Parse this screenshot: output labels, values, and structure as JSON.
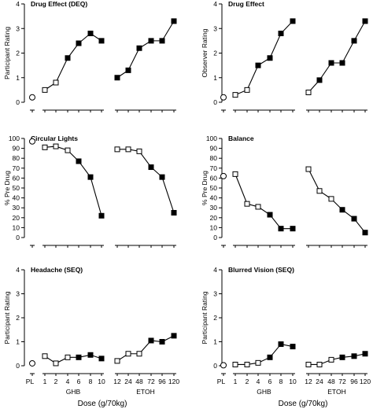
{
  "figure": {
    "x_title": "Dose (g/70kg)",
    "pl_label": "PL",
    "ghb_label": "GHB",
    "etoh_label": "ETOH",
    "ghb_ticks": [
      "1",
      "2",
      "4",
      "6",
      "8",
      "10"
    ],
    "etoh_ticks": [
      "12",
      "24",
      "48",
      "72",
      "96",
      "120"
    ]
  },
  "chart_data": [
    {
      "type": "line",
      "title": "Drug Effect (DEQ)",
      "ylabel": "Participant Rating",
      "ylim": [
        0,
        4
      ],
      "yticks": [
        "0",
        "1",
        "2",
        "3",
        "4"
      ],
      "placebo": 0.2,
      "series": [
        {
          "values": [
            0.5,
            0.8,
            1.8,
            2.4,
            2.8,
            2.5
          ]
        },
        {
          "values": [
            1.0,
            1.3,
            2.2,
            2.5,
            2.5,
            3.3
          ]
        }
      ]
    },
    {
      "type": "line",
      "title": "Drug Effect",
      "ylabel": "Observer Rating",
      "ylim": [
        0,
        4
      ],
      "yticks": [
        "0",
        "1",
        "2",
        "3",
        "4"
      ],
      "placebo": 0.2,
      "series": [
        {
          "values": [
            0.3,
            0.5,
            1.5,
            1.8,
            2.8,
            3.3
          ]
        },
        {
          "values": [
            0.4,
            0.9,
            1.6,
            1.6,
            2.5,
            3.3
          ]
        }
      ]
    },
    {
      "type": "line",
      "title": "Circular Lights",
      "ylabel": "% Pre Drug",
      "ylim": [
        0,
        100
      ],
      "yticks": [
        "0",
        "10",
        "20",
        "30",
        "40",
        "50",
        "60",
        "70",
        "80",
        "90",
        "100"
      ],
      "placebo": 97,
      "series": [
        {
          "values": [
            91,
            92,
            88,
            77,
            61,
            22
          ]
        },
        {
          "values": [
            89,
            89,
            87,
            71,
            61,
            25
          ]
        }
      ]
    },
    {
      "type": "line",
      "title": "Balance",
      "ylabel": "% Pre Drug",
      "ylim": [
        0,
        100
      ],
      "yticks": [
        "0",
        "10",
        "20",
        "30",
        "40",
        "50",
        "60",
        "70",
        "80",
        "90",
        "100"
      ],
      "placebo": 62,
      "series": [
        {
          "values": [
            64,
            34,
            31,
            23,
            9,
            9
          ]
        },
        {
          "values": [
            69,
            47,
            39,
            28,
            19,
            5
          ]
        }
      ]
    },
    {
      "type": "line",
      "title": "Headache (SEQ)",
      "ylabel": "Participant Rating",
      "ylim": [
        0,
        4
      ],
      "yticks": [
        "0",
        "1",
        "2",
        "3",
        "4"
      ],
      "placebo": 0.1,
      "series": [
        {
          "values": [
            0.4,
            0.1,
            0.35,
            0.35,
            0.45,
            0.3
          ]
        },
        {
          "values": [
            0.2,
            0.5,
            0.5,
            1.05,
            1.0,
            1.25
          ]
        }
      ]
    },
    {
      "type": "line",
      "title": "Blurred Vision (SEQ)",
      "ylabel": "Participant Rating",
      "ylim": [
        0,
        4
      ],
      "yticks": [
        "0",
        "1",
        "2",
        "3",
        "4"
      ],
      "placebo": 0.02,
      "series": [
        {
          "values": [
            0.05,
            0.05,
            0.12,
            0.35,
            0.9,
            0.8
          ]
        },
        {
          "values": [
            0.05,
            0.05,
            0.25,
            0.35,
            0.4,
            0.5
          ]
        }
      ]
    }
  ]
}
